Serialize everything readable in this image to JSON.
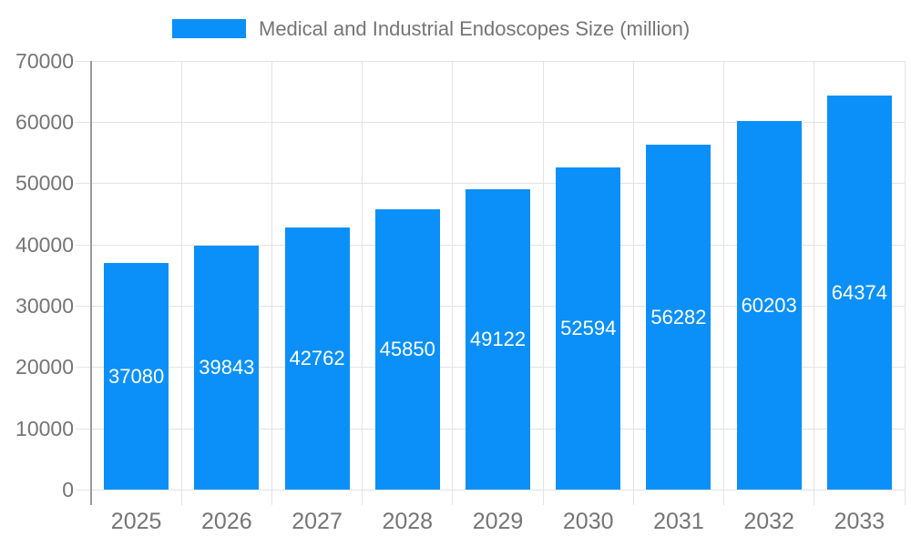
{
  "chart_data": {
    "type": "bar",
    "title": "Medical and Industrial Endoscopes Size (million)",
    "legend": {
      "position": "top",
      "series_label": "Medical and Industrial Endoscopes Size (million)"
    },
    "categories": [
      "2025",
      "2026",
      "2027",
      "2028",
      "2029",
      "2030",
      "2031",
      "2032",
      "2033"
    ],
    "values": [
      37080,
      39843,
      42762,
      45850,
      49122,
      52594,
      56282,
      60203,
      64374
    ],
    "xlabel": "",
    "ylabel": "",
    "ylim": [
      0,
      70000
    ],
    "y_ticks": [
      0,
      10000,
      20000,
      30000,
      40000,
      50000,
      60000,
      70000
    ],
    "grid": true,
    "colors": {
      "bar": "#0a90f8",
      "grid_line": "#e3e3e3",
      "y_axis_line": "#9a9a9a",
      "axis_text": "#757575",
      "bar_value_text": "#ffffff",
      "background": "#ffffff"
    }
  }
}
